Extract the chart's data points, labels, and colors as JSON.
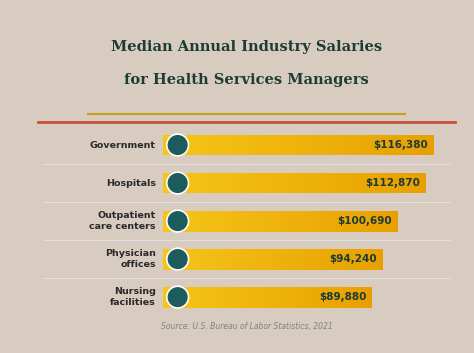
{
  "title_line1": "Median Annual Industry Salaries",
  "title_line2": "for Health Services Managers",
  "categories": [
    "Government",
    "Hospitals",
    "Outpatient\ncare centers",
    "Physician\noffices",
    "Nursing\nfacilities"
  ],
  "values": [
    116380,
    112870,
    100690,
    94240,
    89880
  ],
  "value_labels": [
    "$116,380",
    "$112,870",
    "$100,690",
    "$94,240",
    "$89,880"
  ],
  "max_value": 120000,
  "bar_color_left": "#F5C518",
  "bar_color_right": "#E8A000",
  "icon_bg_color": "#1D5C5C",
  "title_color": "#1D3C34",
  "category_color": "#2A2A2A",
  "source_text": "Source: U.S. Bureau of Labor Statistics, 2021",
  "source_color": "#7A8870",
  "bg_color": "#D8CBBF",
  "card_color": "#FFFFFF",
  "separator_color": "#C8503A",
  "title_underline_color": "#C8A020",
  "divider_color": "#E0E0E0",
  "value_color": "#1D3C34"
}
